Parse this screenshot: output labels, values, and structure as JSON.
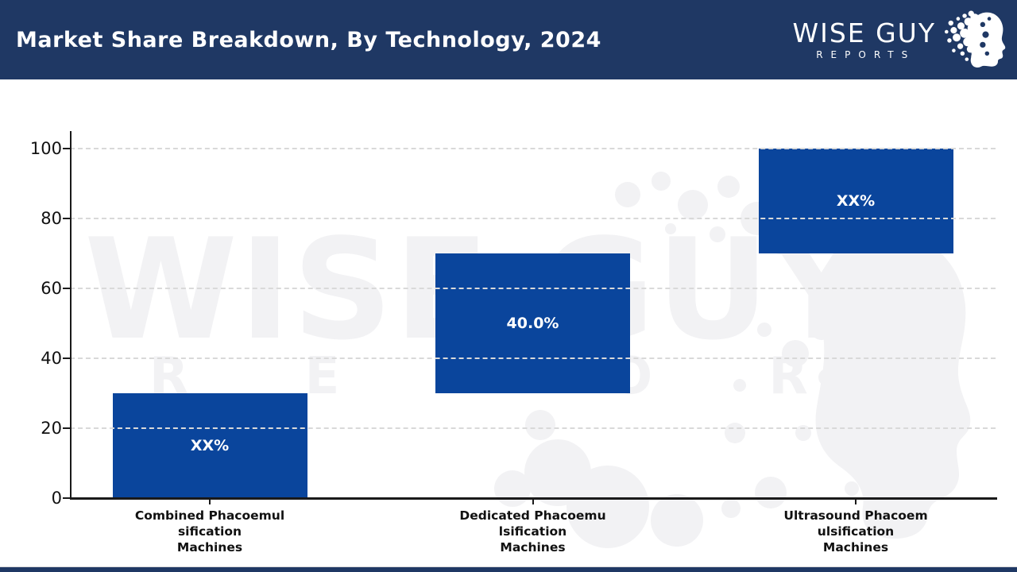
{
  "header": {
    "title": "Market Share Breakdown, By Technology, 2024",
    "logo": {
      "name": "WISE GUY",
      "sub": "REPORTS"
    }
  },
  "watermark": {
    "line1": "WISE GUY",
    "line2": "R E P O R T S"
  },
  "colors": {
    "header_bg": "#1f3864",
    "bar_fill": "#0a459c",
    "bar_label": "#ffffff",
    "grid": "#d9d9d9",
    "axis": "#1a1a1a",
    "watermark": "#f2f2f4"
  },
  "chart_data": {
    "type": "bar",
    "variant": "floating-stacked-percent",
    "title": "Market Share Breakdown, By Technology, 2024",
    "categories": [
      [
        "Combined Phacoemul",
        "sification",
        "Machines"
      ],
      [
        "Dedicated Phacoemu",
        "lsification",
        "Machines"
      ],
      [
        "Ultrasound Phacoem",
        "ulsification",
        "Machines"
      ]
    ],
    "bars": [
      {
        "base": 0,
        "top": 30,
        "label": "XX%"
      },
      {
        "base": 30,
        "top": 70,
        "label": "40.0%"
      },
      {
        "base": 70,
        "top": 100,
        "label": "XX%"
      }
    ],
    "yticks": [
      0,
      20,
      40,
      60,
      80,
      100
    ],
    "ylim": [
      0,
      105
    ],
    "xlabel": "",
    "ylabel": "",
    "grid": "horizontal-dashed",
    "legend": "none"
  }
}
